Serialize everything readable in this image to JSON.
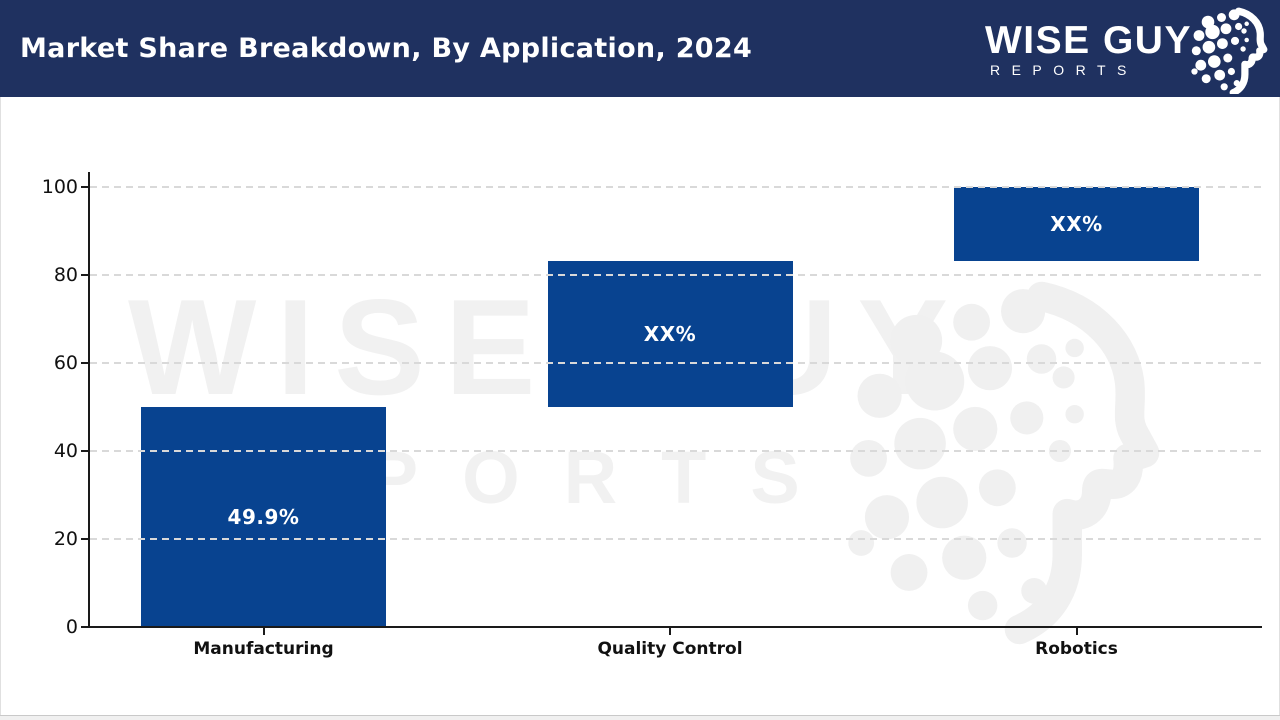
{
  "header": {
    "title": "Market Share Breakdown, By Application, 2024",
    "logo": {
      "line1": "WISE GUY",
      "line2": "REPORTS"
    }
  },
  "watermark": {
    "line1": "WISE GUY",
    "line2": "REPORTS"
  },
  "colors": {
    "header_bg": "#1f3160",
    "bar": "#084390",
    "bar_label": "#ffffff",
    "grid": "#d9d9d9",
    "axis": "#1a1a1a",
    "watermark": "#f1f1f1"
  },
  "chart_data": {
    "type": "bar",
    "subtype": "waterfall",
    "title": "Market Share Breakdown, By Application, 2024",
    "categories": [
      "Manufacturing",
      "Quality Control",
      "Robotics"
    ],
    "segments": [
      {
        "category": "Manufacturing",
        "start": 0,
        "end": 49.9,
        "label": "49.9%"
      },
      {
        "category": "Quality Control",
        "start": 49.9,
        "end": 83.2,
        "label": "XX%"
      },
      {
        "category": "Robotics",
        "start": 83.2,
        "end": 100,
        "label": "XX%"
      }
    ],
    "values_pct": [
      49.9,
      33.3,
      16.8
    ],
    "xlabel": "",
    "ylabel": "",
    "ylim": [
      0,
      100
    ],
    "yticks": [
      0,
      20,
      40,
      60,
      80,
      100
    ],
    "grid": "horizontal-dashed",
    "legend": "none"
  }
}
